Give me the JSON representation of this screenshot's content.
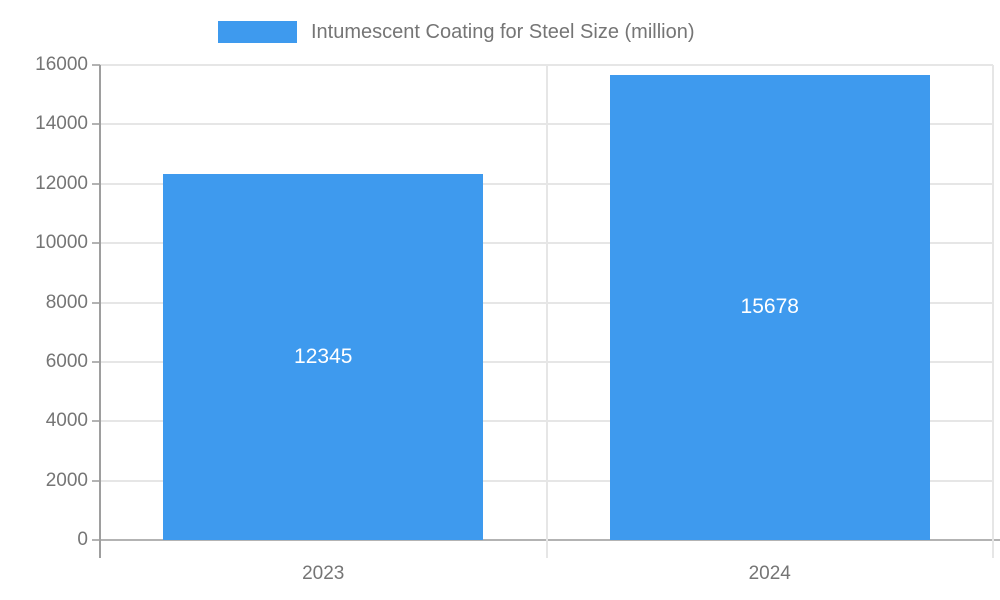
{
  "chart_data": {
    "type": "bar",
    "title": "Intumescent Coating for Steel Size (million)",
    "categories": [
      "2023",
      "2024"
    ],
    "series": [
      {
        "name": "Intumescent Coating for Steel Size (million)",
        "values": [
          12345,
          15678
        ]
      }
    ],
    "data_labels": [
      "12345",
      "15678"
    ],
    "xlabel": "",
    "ylabel": "",
    "ylim": [
      0,
      16000
    ],
    "ytick_step": 2000,
    "yticks": [
      0,
      2000,
      4000,
      6000,
      8000,
      10000,
      12000,
      14000,
      16000
    ],
    "grid": true,
    "legend_position": "top",
    "colors": {
      "bar": "#3e9aee",
      "bar_value_text": "#ffffff",
      "axis_text": "#757575",
      "gridline": "#e6e6e6",
      "baseline": "#b3b3b3",
      "axis_line": "#9e9e9e",
      "background": "#ffffff"
    }
  },
  "legend": {
    "label": "Intumescent Coating for Steel Size (million)",
    "swatch_color": "#3e9aee"
  }
}
